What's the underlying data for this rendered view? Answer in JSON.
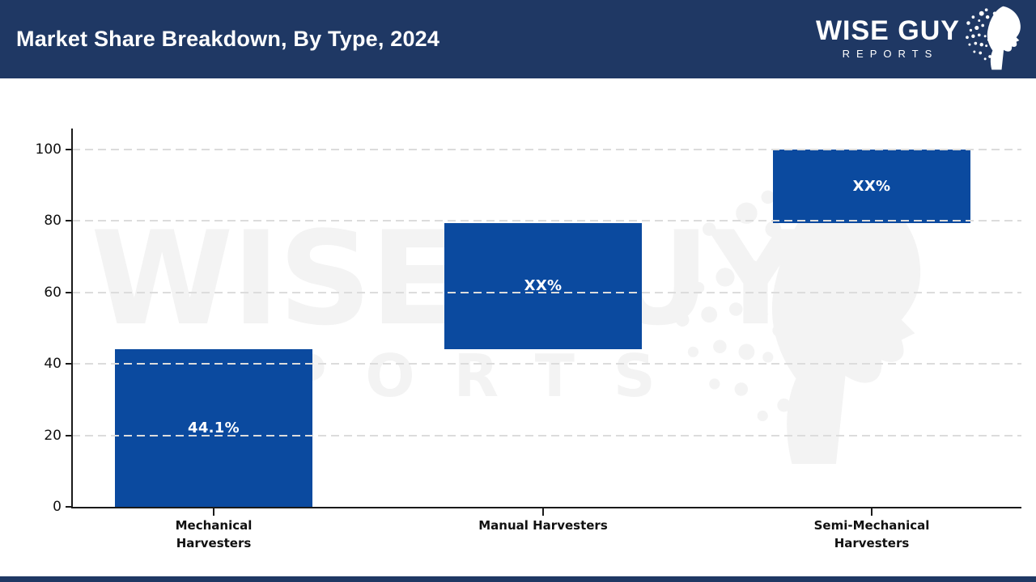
{
  "header": {
    "title": "Market Share Breakdown, By Type, 2024",
    "logo": {
      "brand_top": "WISE GUY",
      "brand_bottom": "REPORTS"
    }
  },
  "watermark": {
    "brand_top": "WISE GUY",
    "brand_bottom": "REPORTS"
  },
  "colors": {
    "header_bg": "#1f3864",
    "bar": "#0b4a9f",
    "grid": "#dcdcdc",
    "axis": "#1a1a1a",
    "watermark": "#f3f3f3",
    "bar_label": "#ffffff",
    "title_text": "#ffffff"
  },
  "chart_data": {
    "type": "bar",
    "subtype": "waterfall",
    "title": "Market Share Breakdown, By Type, 2024",
    "xlabel": "",
    "ylabel": "",
    "ylim": [
      0,
      100
    ],
    "yticks": [
      0,
      20,
      40,
      60,
      80,
      100
    ],
    "grid": "horizontal-dashed",
    "legend": false,
    "bar_color": "#0b4a9f",
    "categories": [
      [
        "Mechanical",
        "Harvesters"
      ],
      [
        "Manual Harvesters"
      ],
      [
        "Semi-Mechanical",
        "Harvesters"
      ]
    ],
    "segments": [
      {
        "name": "Mechanical Harvesters",
        "start": 0,
        "end": 44.1,
        "value": 44.1,
        "label": "44.1%"
      },
      {
        "name": "Manual Harvesters",
        "start": 44.1,
        "end": 79.5,
        "value": 35.4,
        "label": "XX%"
      },
      {
        "name": "Semi-Mechanical Harvesters",
        "start": 79.5,
        "end": 100,
        "value": 20.5,
        "label": "XX%"
      }
    ]
  }
}
